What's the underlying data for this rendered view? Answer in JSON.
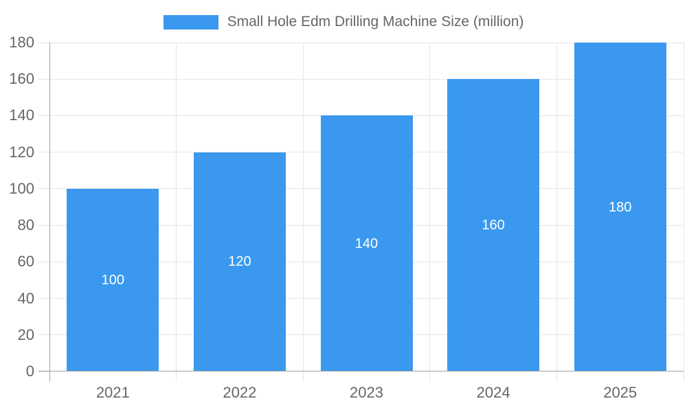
{
  "chart_data": {
    "type": "bar",
    "title": "",
    "legend": "Small Hole Edm Drilling Machine Size (million)",
    "legend_position": "top",
    "categories": [
      "2021",
      "2022",
      "2023",
      "2024",
      "2025"
    ],
    "series": [
      {
        "name": "Small Hole Edm Drilling Machine Size (million)",
        "values": [
          100,
          120,
          140,
          160,
          180
        ]
      }
    ],
    "bar_value_labels": [
      "100",
      "120",
      "140",
      "160",
      "180"
    ],
    "xlabel": "",
    "ylabel": "",
    "ylim": [
      0,
      180
    ],
    "yticks": [
      0,
      20,
      40,
      60,
      80,
      100,
      120,
      140,
      160,
      180
    ],
    "grid": true,
    "colors": {
      "bar": "#3a99ee",
      "bar_label_text": "#ffffff",
      "axis_text": "#666666",
      "grid_line": "#e6e6e6",
      "axis_line": "#a3a3a3",
      "background": "#ffffff"
    }
  }
}
